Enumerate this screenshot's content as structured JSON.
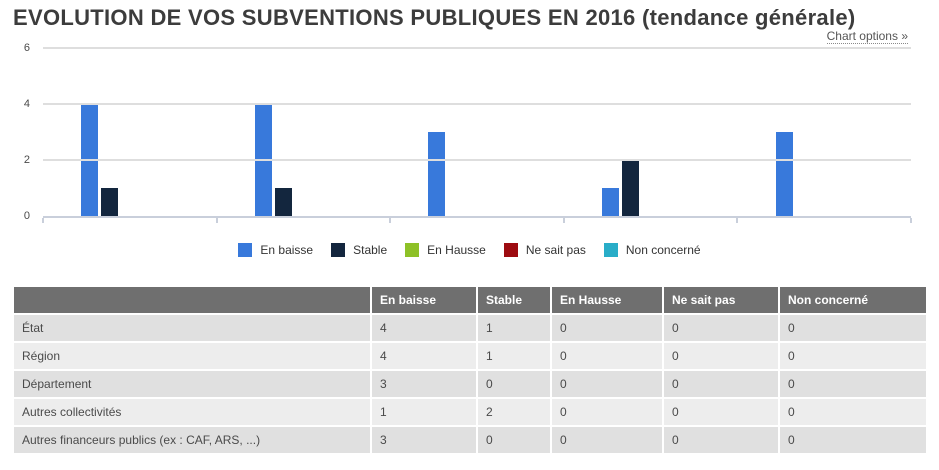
{
  "header": {
    "title": "EVOLUTION DE VOS SUBVENTIONS PUBLIQUES EN 2016 (tendance générale)",
    "chart_options_label": "Chart options »"
  },
  "colors": {
    "en_baisse": "#3879db",
    "stable": "#13263e",
    "en_hausse": "#8ec127",
    "ne_sait_pas": "#9d0b10",
    "non_concerne": "#29adc8",
    "gridline": "#dedede",
    "axis_line": "#c9cfdb",
    "table_header_bg": "#6f6f6f",
    "table_row_odd_bg": "#e0e0e0",
    "table_row_even_bg": "#ededed"
  },
  "chart_data": {
    "type": "bar",
    "title": "EVOLUTION DE VOS SUBVENTIONS PUBLIQUES EN 2016 (tendance générale)",
    "categories": [
      "État",
      "Région",
      "Département",
      "Autres collectivités",
      "Autres financeurs publics (ex : CAF, ARS, ...)"
    ],
    "series": [
      {
        "name": "En baisse",
        "color": "#3879db",
        "values": [
          4,
          4,
          3,
          1,
          3
        ]
      },
      {
        "name": "Stable",
        "color": "#13263e",
        "values": [
          1,
          1,
          0,
          2,
          0
        ]
      },
      {
        "name": "En Hausse",
        "color": "#8ec127",
        "values": [
          0,
          0,
          0,
          0,
          0
        ]
      },
      {
        "name": "Ne sait pas",
        "color": "#9d0b10",
        "values": [
          0,
          0,
          0,
          0,
          0
        ]
      },
      {
        "name": "Non concerné",
        "color": "#29adc8",
        "values": [
          0,
          0,
          0,
          0,
          0
        ]
      }
    ],
    "xlabel": "",
    "ylabel": "",
    "ylim": [
      0,
      6
    ],
    "yticks": [
      6,
      4,
      2,
      0
    ],
    "x_tick_labels_visible": false,
    "grid": true,
    "legend_position": "bottom"
  },
  "table": {
    "columns": [
      "",
      "En baisse",
      "Stable",
      "En Hausse",
      "Ne sait pas",
      "Non concerné"
    ],
    "rows": [
      {
        "label": "État",
        "values": [
          "4",
          "1",
          "0",
          "0",
          "0"
        ]
      },
      {
        "label": "Région",
        "values": [
          "4",
          "1",
          "0",
          "0",
          "0"
        ]
      },
      {
        "label": "Département",
        "values": [
          "3",
          "0",
          "0",
          "0",
          "0"
        ]
      },
      {
        "label": "Autres collectivités",
        "values": [
          "1",
          "2",
          "0",
          "0",
          "0"
        ]
      },
      {
        "label": "Autres financeurs publics (ex : CAF, ARS, ...)",
        "values": [
          "3",
          "0",
          "0",
          "0",
          "0"
        ]
      }
    ]
  }
}
